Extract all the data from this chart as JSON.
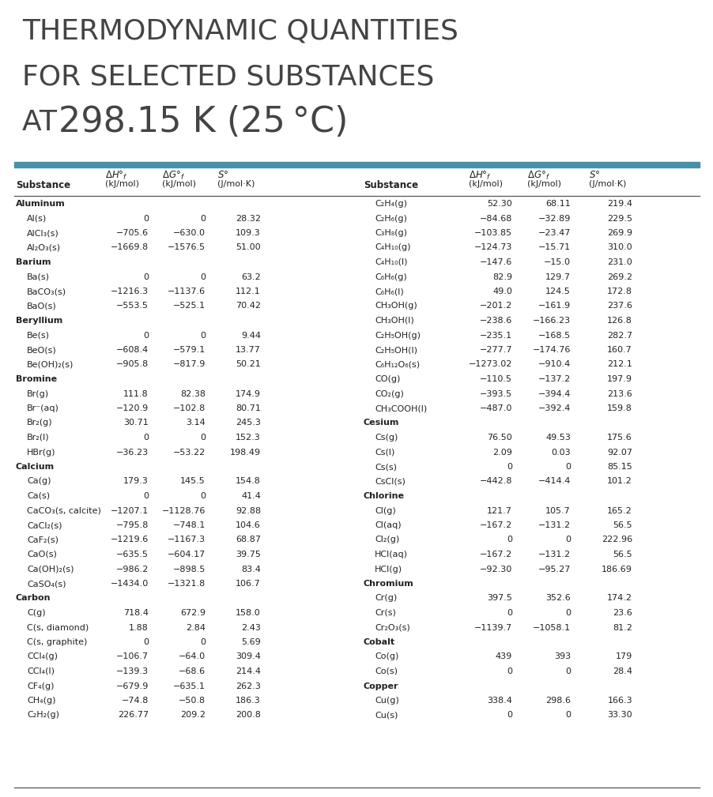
{
  "background": "#ffffff",
  "header_bar_color": "#4a8fa8",
  "text_color": "#222222",
  "title_color": "#444444",
  "left_data": [
    [
      "Aluminum",
      "",
      "",
      ""
    ],
    [
      "Al(s)",
      "0",
      "0",
      "28.32"
    ],
    [
      "AlCl₃(s)",
      "−705.6",
      "−630.0",
      "109.3"
    ],
    [
      "Al₂O₃(s)",
      "−1669.8",
      "−1576.5",
      "51.00"
    ],
    [
      "Barium",
      "",
      "",
      ""
    ],
    [
      "Ba(s)",
      "0",
      "0",
      "63.2"
    ],
    [
      "BaCO₃(s)",
      "−1216.3",
      "−1137.6",
      "112.1"
    ],
    [
      "BaO(s)",
      "−553.5",
      "−525.1",
      "70.42"
    ],
    [
      "Beryllium",
      "",
      "",
      ""
    ],
    [
      "Be(s)",
      "0",
      "0",
      "9.44"
    ],
    [
      "BeO(s)",
      "−608.4",
      "−579.1",
      "13.77"
    ],
    [
      "Be(OH)₂(s)",
      "−905.8",
      "−817.9",
      "50.21"
    ],
    [
      "Bromine",
      "",
      "",
      ""
    ],
    [
      "Br(g)",
      "111.8",
      "82.38",
      "174.9"
    ],
    [
      "Br⁻(aq)",
      "−120.9",
      "−102.8",
      "80.71"
    ],
    [
      "Br₂(g)",
      "30.71",
      "3.14",
      "245.3"
    ],
    [
      "Br₂(l)",
      "0",
      "0",
      "152.3"
    ],
    [
      "HBr(g)",
      "−36.23",
      "−53.22",
      "198.49"
    ],
    [
      "Calcium",
      "",
      "",
      ""
    ],
    [
      "Ca(g)",
      "179.3",
      "145.5",
      "154.8"
    ],
    [
      "Ca(s)",
      "0",
      "0",
      "41.4"
    ],
    [
      "CaCO₃(s, calcite)",
      "−1207.1",
      "−1128.76",
      "92.88"
    ],
    [
      "CaCl₂(s)",
      "−795.8",
      "−748.1",
      "104.6"
    ],
    [
      "CaF₂(s)",
      "−1219.6",
      "−1167.3",
      "68.87"
    ],
    [
      "CaO(s)",
      "−635.5",
      "−604.17",
      "39.75"
    ],
    [
      "Ca(OH)₂(s)",
      "−986.2",
      "−898.5",
      "83.4"
    ],
    [
      "CaSO₄(s)",
      "−1434.0",
      "−1321.8",
      "106.7"
    ],
    [
      "Carbon",
      "",
      "",
      ""
    ],
    [
      "C(g)",
      "718.4",
      "672.9",
      "158.0"
    ],
    [
      "C(s, diamond)",
      "1.88",
      "2.84",
      "2.43"
    ],
    [
      "C(s, graphite)",
      "0",
      "0",
      "5.69"
    ],
    [
      "CCl₄(g)",
      "−106.7",
      "−64.0",
      "309.4"
    ],
    [
      "CCl₄(l)",
      "−139.3",
      "−68.6",
      "214.4"
    ],
    [
      "CF₄(g)",
      "−679.9",
      "−635.1",
      "262.3"
    ],
    [
      "CH₄(g)",
      "−74.8",
      "−50.8",
      "186.3"
    ],
    [
      "C₂H₂(g)",
      "226.77",
      "209.2",
      "200.8"
    ]
  ],
  "right_data": [
    [
      "C₂H₄(g)",
      "52.30",
      "68.11",
      "219.4"
    ],
    [
      "C₂H₆(g)",
      "−84.68",
      "−32.89",
      "229.5"
    ],
    [
      "C₃H₈(g)",
      "−103.85",
      "−23.47",
      "269.9"
    ],
    [
      "C₄H₁₀(g)",
      "−124.73",
      "−15.71",
      "310.0"
    ],
    [
      "C₄H₁₀(l)",
      "−147.6",
      "−15.0",
      "231.0"
    ],
    [
      "C₆H₆(g)",
      "82.9",
      "129.7",
      "269.2"
    ],
    [
      "C₆H₆(l)",
      "49.0",
      "124.5",
      "172.8"
    ],
    [
      "CH₃OH(g)",
      "−201.2",
      "−161.9",
      "237.6"
    ],
    [
      "CH₃OH(l)",
      "−238.6",
      "−166.23",
      "126.8"
    ],
    [
      "C₂H₅OH(g)",
      "−235.1",
      "−168.5",
      "282.7"
    ],
    [
      "C₂H₅OH(l)",
      "−277.7",
      "−174.76",
      "160.7"
    ],
    [
      "C₆H₁₂O₆(s)",
      "−1273.02",
      "−910.4",
      "212.1"
    ],
    [
      "CO(g)",
      "−110.5",
      "−137.2",
      "197.9"
    ],
    [
      "CO₂(g)",
      "−393.5",
      "−394.4",
      "213.6"
    ],
    [
      "CH₃COOH(l)",
      "−487.0",
      "−392.4",
      "159.8"
    ],
    [
      "Cesium",
      "",
      "",
      ""
    ],
    [
      "Cs(g)",
      "76.50",
      "49.53",
      "175.6"
    ],
    [
      "Cs(l)",
      "2.09",
      "0.03",
      "92.07"
    ],
    [
      "Cs(s)",
      "0",
      "0",
      "85.15"
    ],
    [
      "CsCl(s)",
      "−442.8",
      "−414.4",
      "101.2"
    ],
    [
      "Chlorine",
      "",
      "",
      ""
    ],
    [
      "Cl(g)",
      "121.7",
      "105.7",
      "165.2"
    ],
    [
      "Cl(aq)",
      "−167.2",
      "−131.2",
      "56.5"
    ],
    [
      "Cl₂(g)",
      "0",
      "0",
      "222.96"
    ],
    [
      "HCl(aq)",
      "−167.2",
      "−131.2",
      "56.5"
    ],
    [
      "HCl(g)",
      "−92.30",
      "−95.27",
      "186.69"
    ],
    [
      "Chromium",
      "",
      "",
      ""
    ],
    [
      "Cr(g)",
      "397.5",
      "352.6",
      "174.2"
    ],
    [
      "Cr(s)",
      "0",
      "0",
      "23.6"
    ],
    [
      "Cr₂O₃(s)",
      "−1139.7",
      "−1058.1",
      "81.2"
    ],
    [
      "Cobalt",
      "",
      "",
      ""
    ],
    [
      "Co(g)",
      "439",
      "393",
      "179"
    ],
    [
      "Co(s)",
      "0",
      "0",
      "28.4"
    ],
    [
      "Copper",
      "",
      "",
      ""
    ],
    [
      "Cu(g)",
      "338.4",
      "298.6",
      "166.3"
    ],
    [
      "Cu(s)",
      "0",
      "0",
      "33.30"
    ]
  ]
}
